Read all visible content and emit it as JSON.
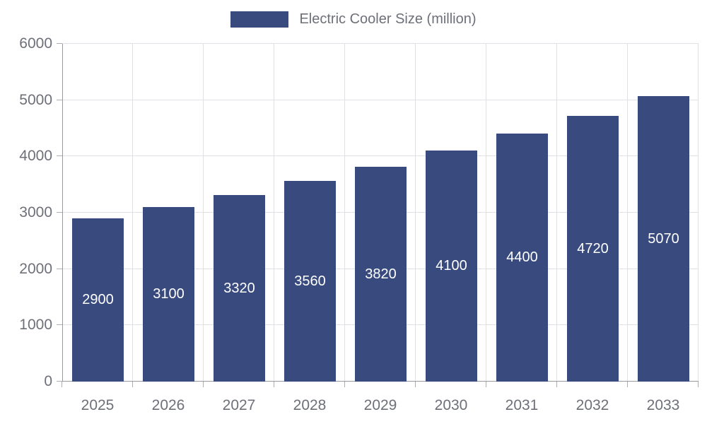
{
  "chart_data": {
    "type": "bar",
    "title": "",
    "categories": [
      "2025",
      "2026",
      "2027",
      "2028",
      "2029",
      "2030",
      "2031",
      "2032",
      "2033"
    ],
    "series": [
      {
        "name": "Electric Cooler Size (million)",
        "values": [
          2900,
          3100,
          3320,
          3560,
          3820,
          4100,
          4400,
          4720,
          5070
        ]
      }
    ],
    "xlabel": "",
    "ylabel": "",
    "ylim": [
      0,
      6000
    ],
    "y_ticks": [
      0,
      1000,
      2000,
      3000,
      4000,
      5000,
      6000
    ],
    "grid": true,
    "legend_position": "top-center",
    "bar_labels_shown": true,
    "style": {
      "bar_color": "#384A7E",
      "bar_label_color": "#ffffff",
      "gridline_color": "#E0E0E6",
      "axis_line_color": "#97999E",
      "tick_color": "#ACAEB3",
      "label_color": "#6E7079",
      "background_color": "#ffffff"
    }
  }
}
